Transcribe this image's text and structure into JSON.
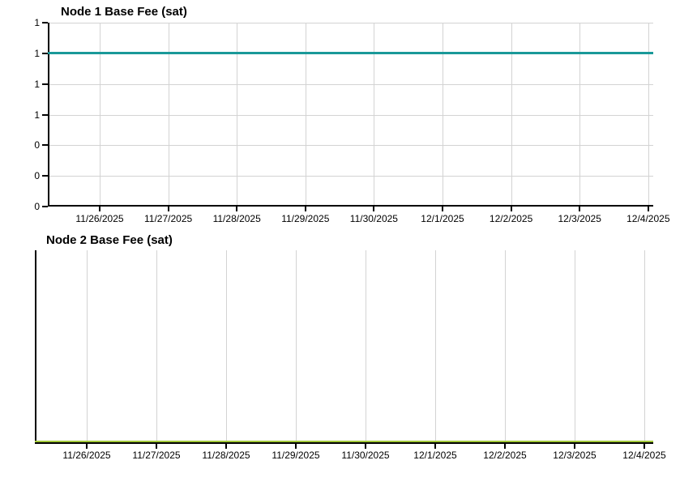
{
  "charts": [
    {
      "title": "Node 1 Base Fee (sat)",
      "y_labels": [
        "1",
        "1",
        "1",
        "1",
        "0",
        "0",
        "0"
      ],
      "x_labels": [
        "11/26/2025",
        "11/27/2025",
        "11/28/2025",
        "11/29/2025",
        "11/30/2025",
        "12/1/2025",
        "12/2/2025",
        "12/3/2025",
        "12/4/2025"
      ]
    },
    {
      "title": "Node 2 Base Fee (sat)",
      "y_labels": [],
      "x_labels": [
        "11/26/2025",
        "11/27/2025",
        "11/28/2025",
        "11/29/2025",
        "11/30/2025",
        "12/1/2025",
        "12/2/2025",
        "12/3/2025",
        "12/4/2025"
      ]
    }
  ],
  "colors": {
    "background": "#ffffff",
    "text": "#000000",
    "axis": "#000000",
    "gridline": "#d3d3d3",
    "node1_line": "#1a9999",
    "node2_line": "#a2c939"
  },
  "chart_data": [
    {
      "type": "line",
      "title": "Node 1 Base Fee (sat)",
      "x": [
        "11/26/2025",
        "11/27/2025",
        "11/28/2025",
        "11/29/2025",
        "11/30/2025",
        "12/1/2025",
        "12/2/2025",
        "12/3/2025",
        "12/4/2025"
      ],
      "series": [
        {
          "name": "Node 1 Base Fee",
          "values": [
            1,
            1,
            1,
            1,
            1,
            1,
            1,
            1,
            1
          ],
          "color": "#1a9999",
          "line_width": 3
        }
      ],
      "xlabel": "",
      "ylabel": "",
      "ylim": [
        0,
        1.2
      ],
      "y_tick_values": [
        1.2,
        1.0,
        0.8,
        0.6,
        0.4,
        0.2,
        0
      ],
      "y_tick_labels_shown": [
        "1",
        "1",
        "1",
        "1",
        "0",
        "0",
        "0"
      ],
      "grid": "horizontal-and-vertical",
      "legend": "none"
    },
    {
      "type": "line",
      "title": "Node 2 Base Fee (sat)",
      "x": [
        "11/26/2025",
        "11/27/2025",
        "11/28/2025",
        "11/29/2025",
        "11/30/2025",
        "12/1/2025",
        "12/2/2025",
        "12/3/2025",
        "12/4/2025"
      ],
      "series": [
        {
          "name": "Node 2 Base Fee",
          "values": [
            0,
            0,
            0,
            0,
            0,
            0,
            0,
            0,
            0
          ],
          "color": "#a2c939",
          "line_width": 2
        }
      ],
      "xlabel": "",
      "ylabel": "",
      "ylim": [
        0,
        1
      ],
      "y_tick_values": [],
      "y_tick_labels_shown": [],
      "grid": "vertical-only",
      "legend": "none"
    }
  ]
}
